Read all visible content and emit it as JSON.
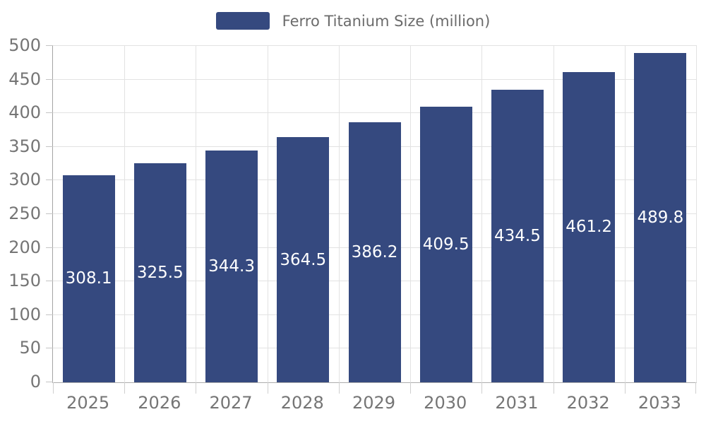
{
  "chart_data": {
    "type": "bar",
    "title": "Ferro Titanium Size (million)",
    "legend": {
      "label": "Ferro Titanium Size (million)",
      "position": "top-center"
    },
    "categories": [
      "2025",
      "2026",
      "2027",
      "2028",
      "2029",
      "2030",
      "2031",
      "2032",
      "2033"
    ],
    "series": [
      {
        "name": "Ferro Titanium Size (million)",
        "values": [
          308.1,
          325.5,
          344.3,
          364.5,
          386.2,
          409.5,
          434.5,
          461.2,
          489.8
        ]
      }
    ],
    "xlabel": "",
    "ylabel": "",
    "ylim": [
      0,
      500
    ],
    "ytick_step": 50,
    "yticks": [
      0,
      50,
      100,
      150,
      200,
      250,
      300,
      350,
      400,
      450,
      500
    ],
    "grid": true,
    "value_labels": "inside-center",
    "colors": {
      "bar": "#35497f",
      "bar_label": "#ffffff",
      "axis_text": "#757575",
      "legend_text": "#6b6b6b",
      "gridline": "#e2e2e2",
      "axis_line": "#a4a4a4"
    }
  }
}
